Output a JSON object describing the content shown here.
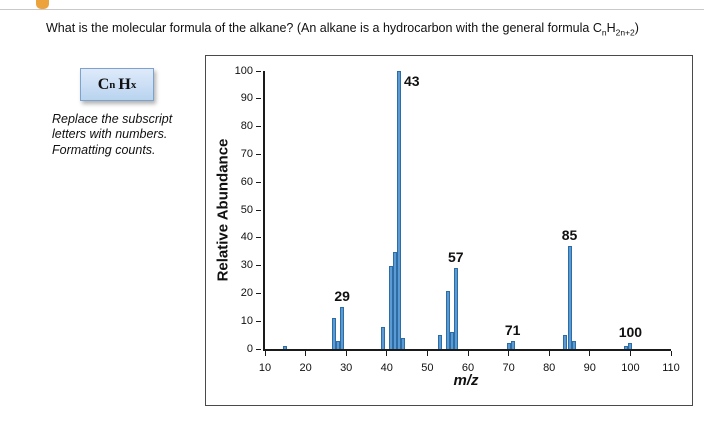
{
  "question": {
    "lead": "What is the molecular formula of the alkane? (An alkane is a hydrocarbon with the general formula C",
    "formula_sub1": "n",
    "formula_mid": "H",
    "formula_sub2": "2n+2",
    "close_paren": ")"
  },
  "answer_box": {
    "element1": "C",
    "element1_sub": "n",
    "element2": "H",
    "element2_sub": "x"
  },
  "hint": {
    "line1": "Replace the subscript letters with numbers.",
    "line2": "Formatting counts."
  },
  "chart_data": {
    "type": "bar",
    "title": "",
    "xlabel": "m/z",
    "ylabel": "Relative Abundance",
    "xlim": [
      10,
      110
    ],
    "ylim": [
      0,
      100
    ],
    "x_ticks": [
      10,
      20,
      30,
      40,
      50,
      60,
      70,
      80,
      90,
      100,
      110
    ],
    "y_ticks": [
      0,
      10,
      20,
      30,
      40,
      50,
      60,
      70,
      80,
      90,
      100
    ],
    "grid": false,
    "legend": "none",
    "bar_color": "#5b9bd5",
    "bar_border_color": "#2e6da4",
    "peaks": [
      {
        "mz": 15,
        "value": 1
      },
      {
        "mz": 27,
        "value": 11
      },
      {
        "mz": 28,
        "value": 3
      },
      {
        "mz": 29,
        "value": 15,
        "label": "29"
      },
      {
        "mz": 39,
        "value": 8
      },
      {
        "mz": 41,
        "value": 30
      },
      {
        "mz": 42,
        "value": 35
      },
      {
        "mz": 43,
        "value": 100,
        "label": "43"
      },
      {
        "mz": 44,
        "value": 4
      },
      {
        "mz": 53,
        "value": 5
      },
      {
        "mz": 55,
        "value": 21
      },
      {
        "mz": 56,
        "value": 6
      },
      {
        "mz": 57,
        "value": 29,
        "label": "57"
      },
      {
        "mz": 70,
        "value": 2
      },
      {
        "mz": 71,
        "value": 3,
        "label": "71"
      },
      {
        "mz": 84,
        "value": 5
      },
      {
        "mz": 85,
        "value": 37,
        "label": "85"
      },
      {
        "mz": 86,
        "value": 3
      },
      {
        "mz": 99,
        "value": 1
      },
      {
        "mz": 100,
        "value": 2,
        "label": "100"
      }
    ]
  }
}
